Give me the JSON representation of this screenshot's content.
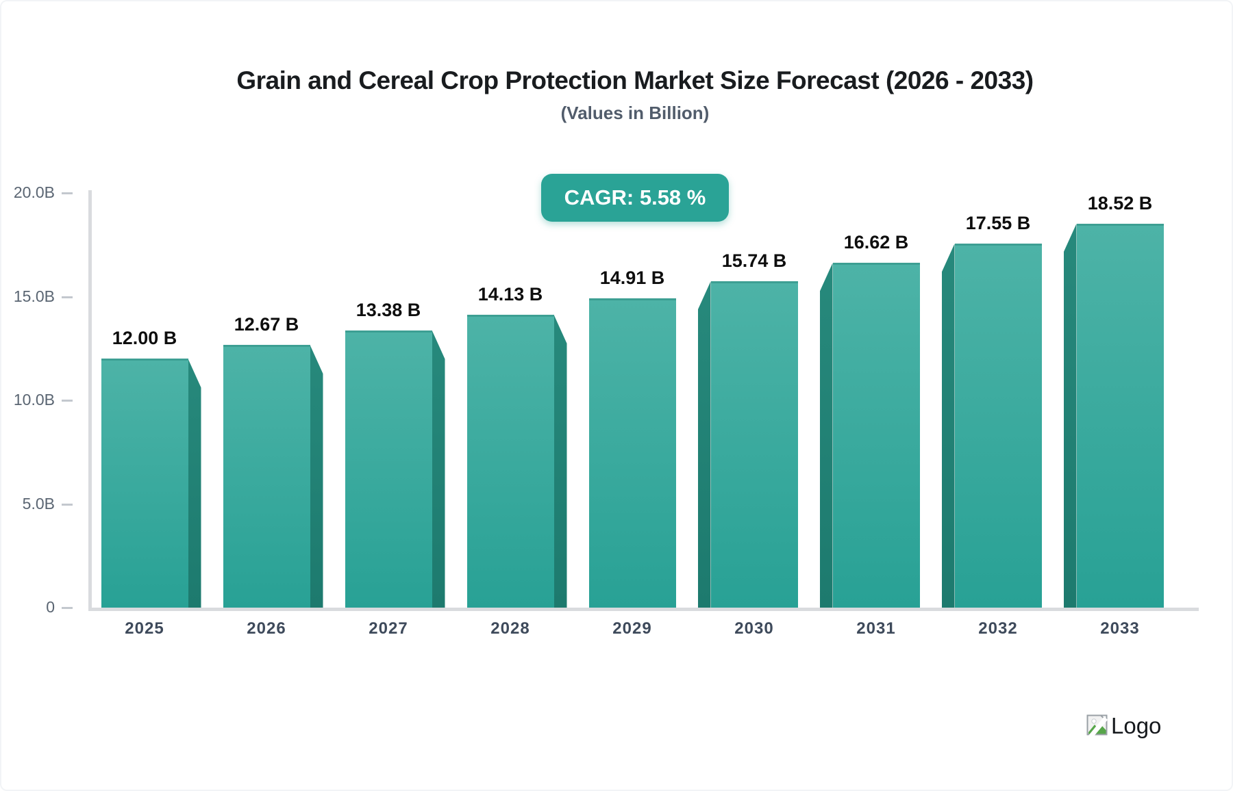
{
  "header": {
    "title": "Grain and Cereal Crop Protection Market Size Forecast (2026 - 2033)",
    "subtitle": "(Values in Billion)"
  },
  "cagr_badge": {
    "label": "CAGR: 5.58 %",
    "cagr_percent": 5.58
  },
  "footer": {
    "logo_alt": "Logo"
  },
  "colors": {
    "bar_face_top": "#4db3a7",
    "bar_face_bottom": "#28a195",
    "bar_top_edge": "#3d9f93",
    "bar_side_top": "#27897c",
    "bar_side_bottom": "#1d7a6e",
    "badge_bg": "#2aa396",
    "axis_line": "#d9dbde",
    "tick_label": "#5a6572",
    "year_label": "#3e4a5b",
    "value_label": "#0e0e0e"
  },
  "chart_data": {
    "type": "bar",
    "title": "Grain and Cereal Crop Protection Market Size Forecast (2026 - 2033)",
    "subtitle": "(Values in Billion)",
    "cagr_label": "CAGR: 5.58 %",
    "categories": [
      "2025",
      "2026",
      "2027",
      "2028",
      "2029",
      "2030",
      "2031",
      "2032",
      "2033"
    ],
    "values": [
      12.0,
      12.67,
      13.38,
      14.13,
      14.91,
      15.74,
      16.62,
      17.55,
      18.52
    ],
    "value_labels": [
      "12.00 B",
      "12.67 B",
      "13.38 B",
      "14.13 B",
      "14.91 B",
      "15.74 B",
      "16.62 B",
      "17.55 B",
      "18.52 B"
    ],
    "xlabel": "",
    "ylabel": "",
    "ylim": [
      0,
      20
    ],
    "yticks": [
      {
        "value": 20,
        "label": "20.0B"
      },
      {
        "value": 15,
        "label": "15.0B"
      },
      {
        "value": 10,
        "label": "10.0B"
      },
      {
        "value": 5,
        "label": "5.0B"
      },
      {
        "value": 0,
        "label": "0"
      }
    ],
    "grid": false,
    "legend": false,
    "bar_style": "3d-teal-gradient"
  }
}
